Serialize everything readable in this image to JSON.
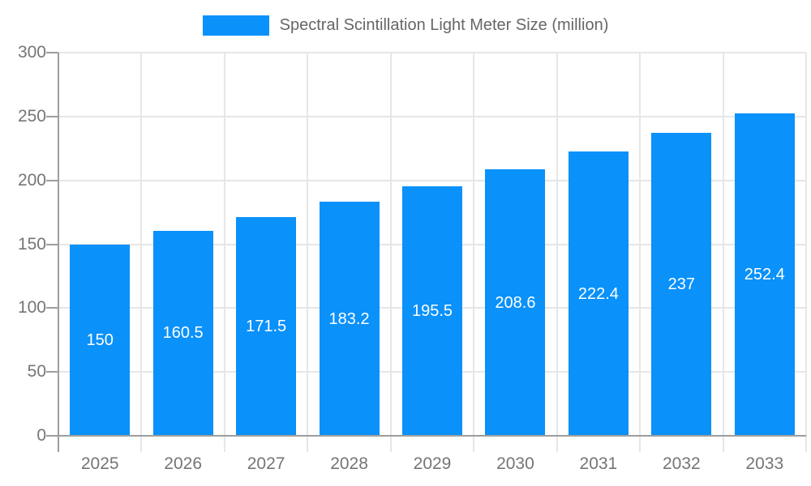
{
  "chart_data": {
    "type": "bar",
    "title": "Spectral Scintillation Light Meter Size (million)",
    "categories": [
      "2025",
      "2026",
      "2027",
      "2028",
      "2029",
      "2030",
      "2031",
      "2032",
      "2033"
    ],
    "values": [
      150,
      160.5,
      171.5,
      183.2,
      195.5,
      208.6,
      222.4,
      237,
      252.4
    ],
    "value_labels": [
      "150",
      "160.5",
      "171.5",
      "183.2",
      "195.5",
      "208.6",
      "222.4",
      "237",
      "252.4"
    ],
    "xlabel": "",
    "ylabel": "",
    "ylim": [
      0,
      300
    ],
    "yticks": [
      0,
      50,
      100,
      150,
      200,
      250,
      300
    ],
    "grid": true,
    "legend_position": "top-center",
    "colors": {
      "bar": "#0a91fa",
      "grid": "#e6e6e6",
      "axis": "#9e9e9e",
      "tick_text": "#757575",
      "legend_text": "#666666",
      "bar_label": "#ffffff",
      "background": "#ffffff"
    }
  }
}
